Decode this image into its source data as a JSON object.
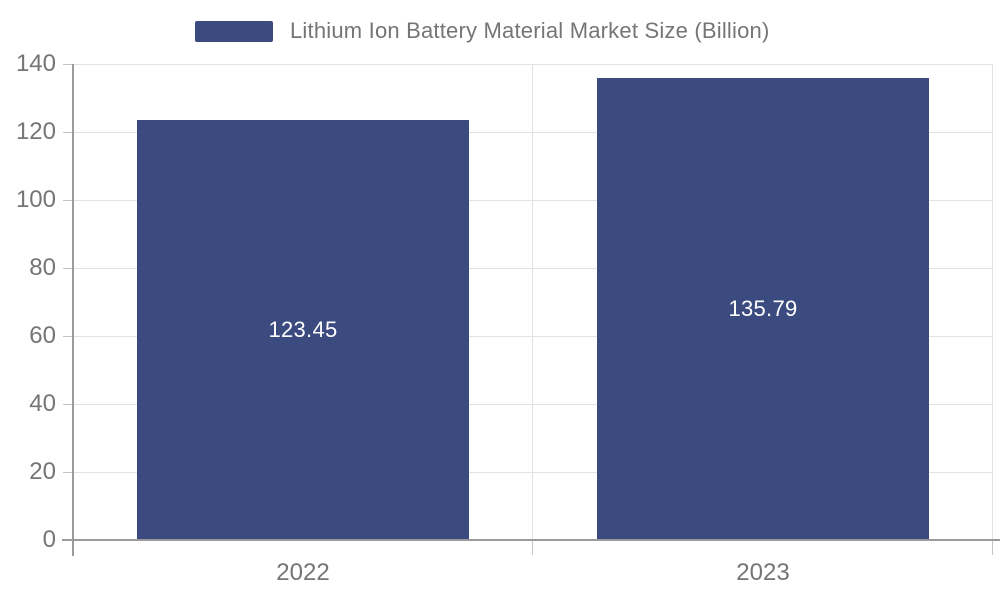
{
  "chart_data": {
    "type": "bar",
    "title": "Lithium Ion Battery Material Market Size (Billion)",
    "categories": [
      "2022",
      "2023"
    ],
    "values": [
      123.45,
      135.79
    ],
    "bar_labels": [
      "123.45",
      "135.79"
    ],
    "xlabel": "",
    "ylabel": "",
    "ylim": [
      0,
      140
    ],
    "ytick_step": 20,
    "grid": true,
    "legend_position": "top-center",
    "colors": {
      "bar": "#3B4A7F",
      "bar_label_text": "#FFFFFF",
      "axis_text": "#757575",
      "legend_text": "#757575",
      "gridline": "#E2E2E2",
      "tick": "#C4C4C4",
      "axis_line": "#9B9B9B",
      "background": "#FFFFFF"
    }
  }
}
